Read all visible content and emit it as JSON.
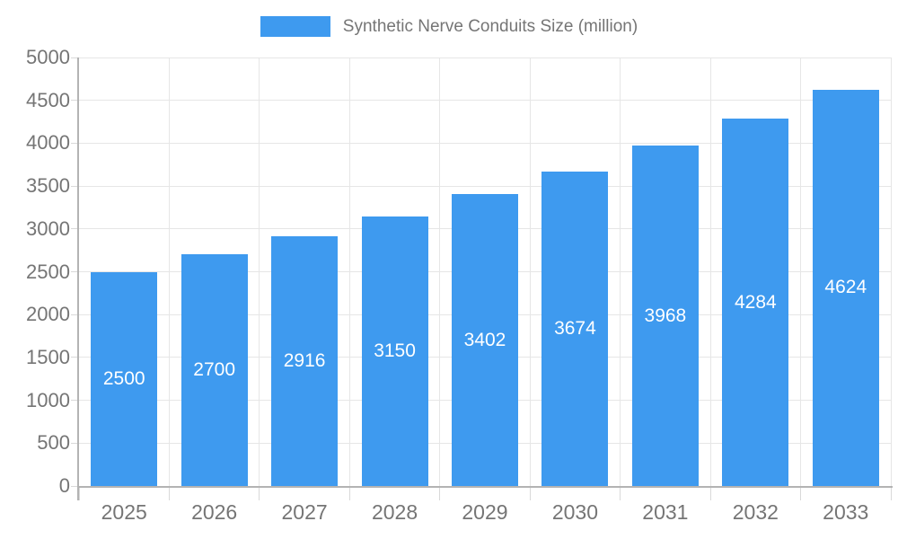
{
  "legend": {
    "label": "Synthetic Nerve Conduits Size (million)"
  },
  "chart_data": {
    "type": "bar",
    "title": "Synthetic Nerve Conduits Size (million)",
    "categories": [
      "2025",
      "2026",
      "2027",
      "2028",
      "2029",
      "2030",
      "2031",
      "2032",
      "2033"
    ],
    "values": [
      2500,
      2700,
      2916,
      3150,
      3402,
      3674,
      3968,
      4284,
      4624
    ],
    "series": [
      {
        "name": "Synthetic Nerve Conduits Size (million)",
        "values": [
          2500,
          2700,
          2916,
          3150,
          3402,
          3674,
          3968,
          4284,
          4624
        ]
      }
    ],
    "value_labels_shown": true,
    "xlabel": "",
    "ylabel": "",
    "ylim": [
      0,
      5000
    ],
    "ytick_step": 500,
    "ytick_labels": [
      "0",
      "500",
      "1000",
      "1500",
      "2000",
      "2500",
      "3000",
      "3500",
      "4000",
      "4500",
      "5000"
    ],
    "grid": true,
    "legend_position": "top-center"
  },
  "colors": {
    "bar": "#3E9AEF",
    "axis_label": "#757575",
    "gridline": "#e6e6e6",
    "axis_line": "#b3b3b3",
    "tick": "#d9d9d9",
    "value_label": "#ffffff",
    "background": "#ffffff"
  }
}
